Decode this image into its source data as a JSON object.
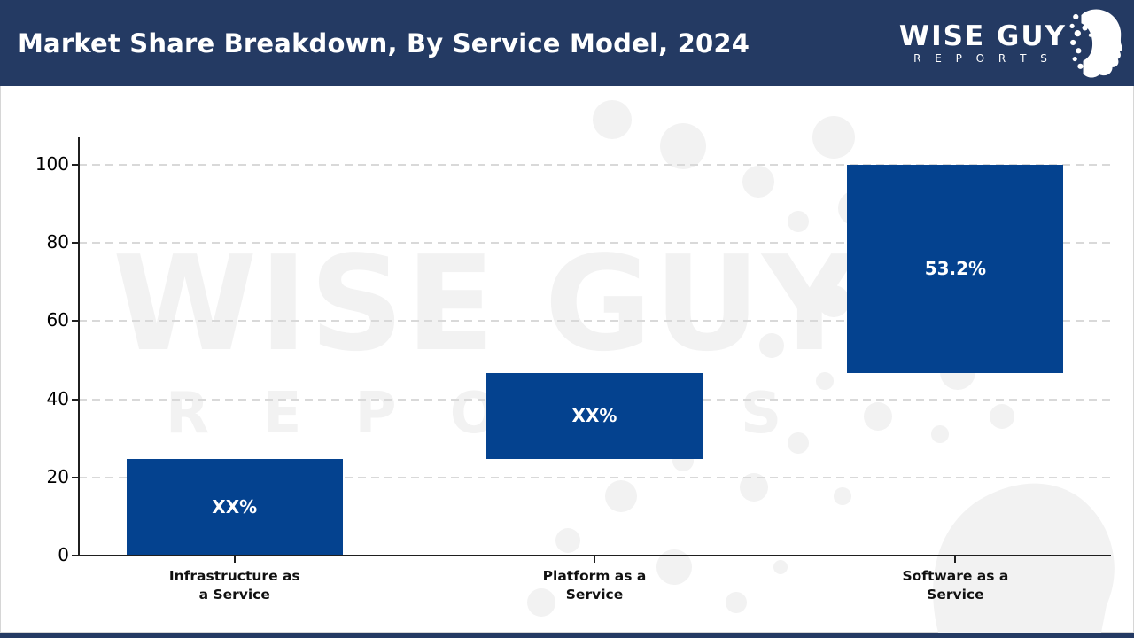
{
  "header": {
    "title": "Market Share Breakdown, By Service Model, 2024",
    "logo": {
      "brand": "WISE GUY",
      "sub": "R E P O R T S"
    }
  },
  "watermark": {
    "brand": "WISE GUY",
    "sub": "R E P O R T S"
  },
  "colors": {
    "header_bg": "#243a63",
    "bar": "#04428f",
    "grid": "#d9d9d9",
    "axis": "#1f1f1f",
    "bar_label": "#ffffff"
  },
  "chart_data": {
    "type": "bar",
    "subtype": "waterfall-floating-bars",
    "title": "Market Share Breakdown, By Service Model, 2024",
    "xlabel": "",
    "ylabel": "",
    "categories": [
      [
        "Infrastructure as",
        "a Service"
      ],
      [
        "Platform as a",
        "Service"
      ],
      [
        "Software as a",
        "Service"
      ]
    ],
    "bars": [
      {
        "category": "Infrastructure as a Service",
        "start": 0,
        "end": 24.8,
        "value_label": "XX%"
      },
      {
        "category": "Platform as a Service",
        "start": 24.8,
        "end": 46.8,
        "value_label": "XX%"
      },
      {
        "category": "Software as a Service",
        "start": 46.8,
        "end": 100,
        "value_label": "53.2%"
      }
    ],
    "yticks": [
      0,
      20,
      40,
      60,
      80,
      100
    ],
    "ylim": [
      0,
      107
    ],
    "grid": "horizontal-dashed",
    "legend": "none"
  }
}
